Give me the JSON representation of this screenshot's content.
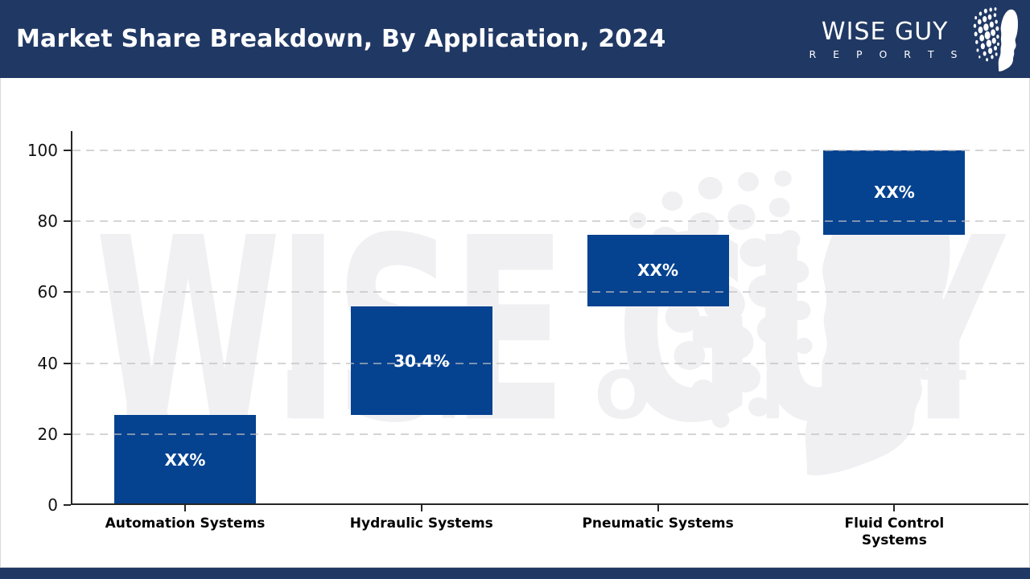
{
  "header": {
    "title": "Market Share Breakdown, By Application, 2024",
    "logo": {
      "brand": "WISE GUY",
      "brand_sub": "R E P O R T S"
    }
  },
  "watermark": {
    "line1": "WISE GUY",
    "line2": "R E P O R T S"
  },
  "colors": {
    "header_bg": "#203864",
    "footer_bg": "#203864",
    "bar": "#054290",
    "bar_label": "#ffffff",
    "axis": "#262626",
    "tick_label": "#111111",
    "gridline": "#d9d9d9",
    "watermark": "#f0f0f3",
    "page_bg": "#ffffff",
    "frame_border": "#d9d9d9"
  },
  "chart_data": {
    "type": "bar",
    "subtype": "waterfall-floating-segments",
    "title": "Market Share Breakdown, By Application, 2024",
    "unit": "%",
    "categories": [
      "Automation Systems",
      "Hydraulic Systems",
      "Pneumatic Systems",
      "Fluid Control Systems"
    ],
    "category_lines": [
      [
        "Automation Systems"
      ],
      [
        "Hydraulic Systems"
      ],
      [
        "Pneumatic Systems"
      ],
      [
        "Fluid Control",
        "Systems"
      ]
    ],
    "segments": [
      {
        "category": "Automation Systems",
        "start": 0,
        "end": 25.5,
        "height": 25.5,
        "label": "XX%"
      },
      {
        "category": "Hydraulic Systems",
        "start": 25.5,
        "end": 55.9,
        "height": 30.4,
        "label": "30.4%"
      },
      {
        "category": "Pneumatic Systems",
        "start": 55.9,
        "end": 76.3,
        "height": 20.4,
        "label": "XX%"
      },
      {
        "category": "Fluid Control Systems",
        "start": 76.3,
        "end": 100,
        "height": 23.7,
        "label": "XX%"
      }
    ],
    "yticks": [
      0,
      20,
      40,
      60,
      80,
      100
    ],
    "ylim": [
      0,
      100
    ],
    "xlabel": "",
    "ylabel": "",
    "grid": "horizontal-dashed",
    "legend": "none"
  }
}
